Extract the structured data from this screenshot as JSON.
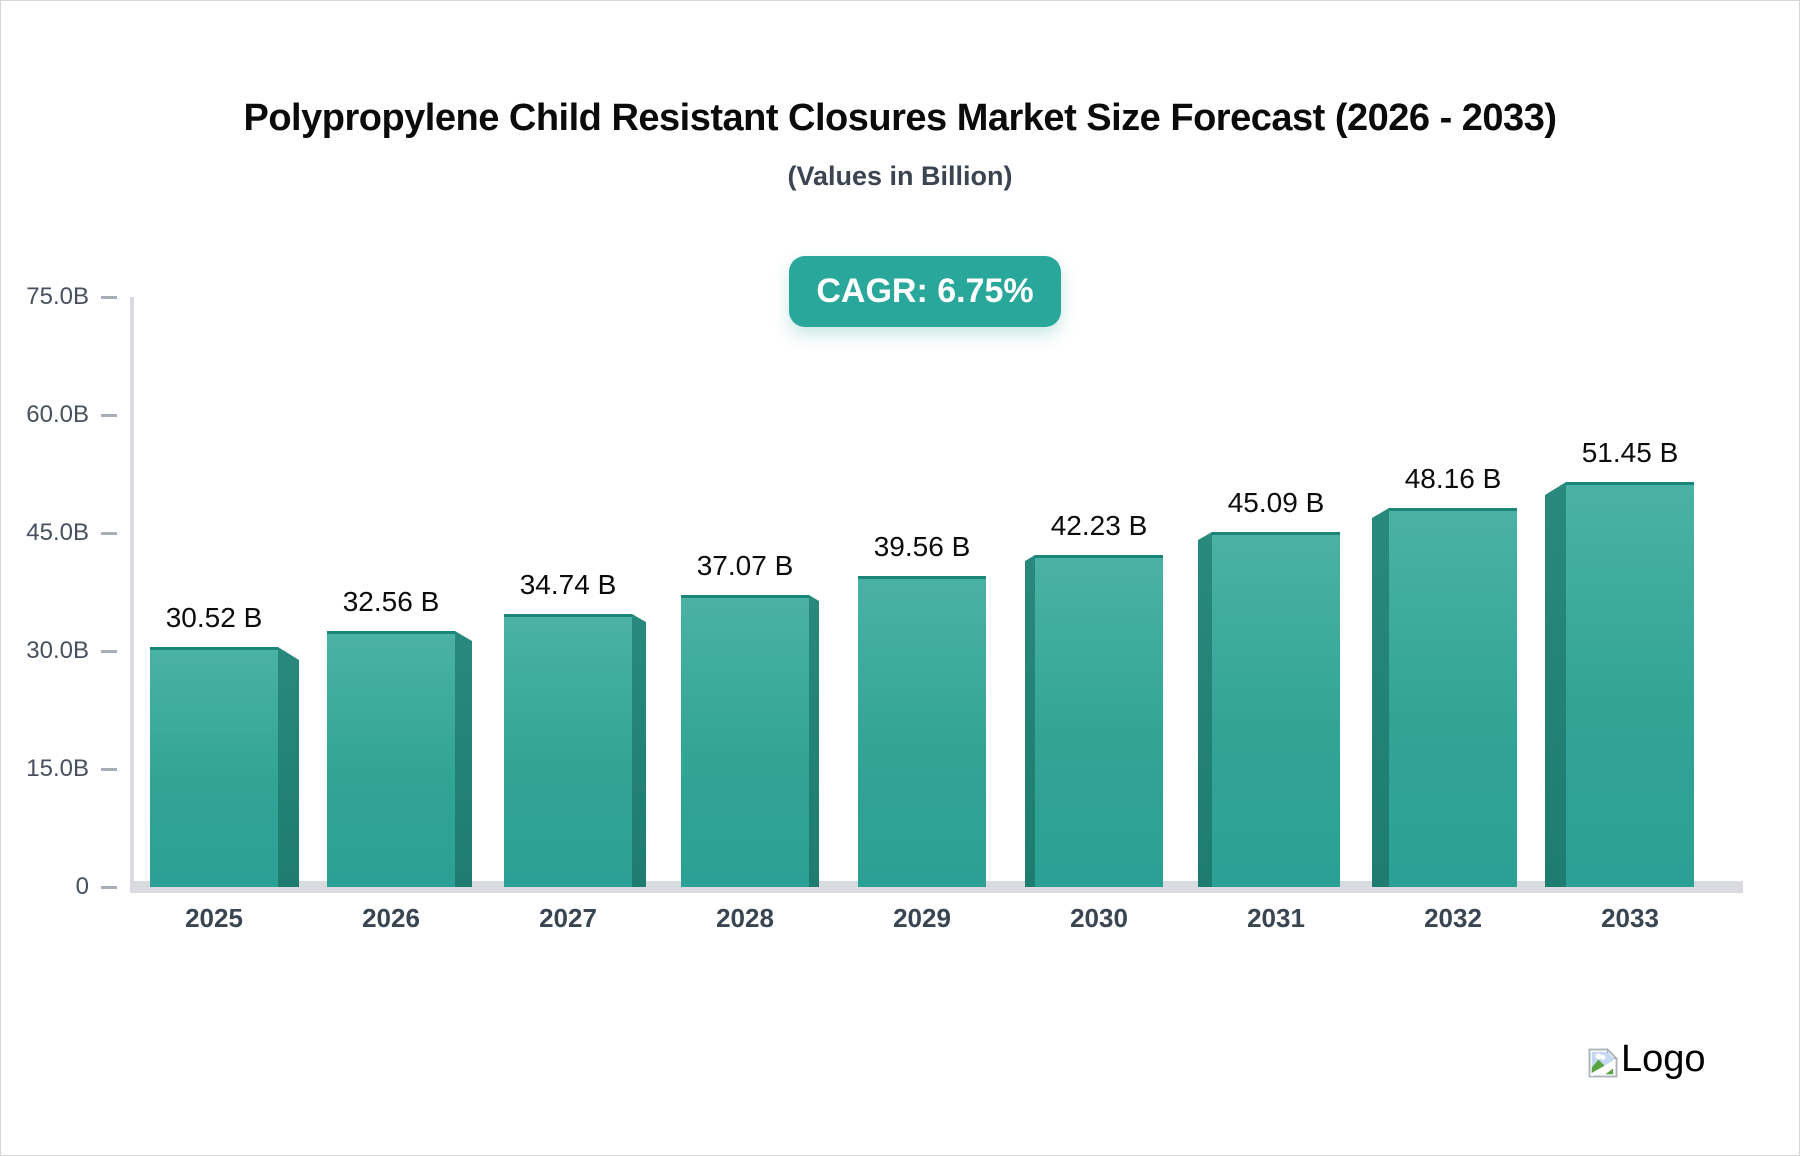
{
  "header": {
    "title": "Polypropylene Child Resistant Closures Market Size Forecast (2026 - 2033)",
    "subtitle": "(Values in Billion)"
  },
  "badge": {
    "label": "CAGR: 6.75%"
  },
  "chart_data": {
    "type": "bar",
    "title": "Polypropylene Child Resistant Closures Market Size Forecast (2026 - 2033)",
    "subtitle": "(Values in Billion)",
    "categories": [
      "2025",
      "2026",
      "2027",
      "2028",
      "2029",
      "2030",
      "2031",
      "2032",
      "2033"
    ],
    "values": [
      30.52,
      32.56,
      34.74,
      37.07,
      39.56,
      42.23,
      45.09,
      48.16,
      51.45
    ],
    "bar_labels": [
      "30.52 B",
      "32.56 B",
      "34.74 B",
      "37.07 B",
      "39.56 B",
      "42.23 B",
      "45.09 B",
      "48.16 B",
      "51.45 B"
    ],
    "xlabel": "",
    "ylabel": "",
    "ylim": [
      0,
      75
    ],
    "y_tick_values": [
      0,
      15,
      30,
      45,
      60,
      75
    ],
    "y_tick_labels": [
      "0",
      "15.0B",
      "30.0B",
      "45.0B",
      "60.0B",
      "75.0B"
    ],
    "grid": false,
    "legend": false,
    "style": "3d-perspective-bars",
    "colors": {
      "bar_front": "#2ba094",
      "bar_front_light": "#4ab2a4",
      "bar_side": "#1e7c70",
      "bar_top_line": "#1b8578",
      "accent": "#2aa79b",
      "axis": "#d9dbe0"
    }
  },
  "logo": {
    "alt_text": "Logo"
  }
}
